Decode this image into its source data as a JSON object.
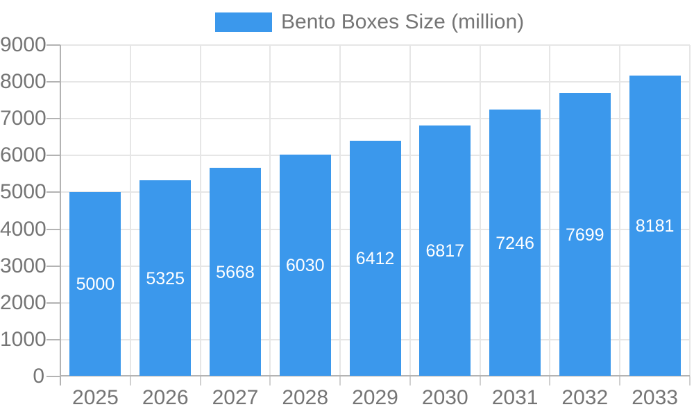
{
  "chart_data": {
    "type": "bar",
    "title": "Bento Boxes Size (million)",
    "categories": [
      "2025",
      "2026",
      "2027",
      "2028",
      "2029",
      "2030",
      "2031",
      "2032",
      "2033"
    ],
    "values": [
      5000,
      5325,
      5668,
      6030,
      6412,
      6817,
      7246,
      7699,
      8181
    ],
    "series": [
      {
        "name": "Bento Boxes Size (million)",
        "values": [
          5000,
          5325,
          5668,
          6030,
          6412,
          6817,
          7246,
          7699,
          8181
        ]
      }
    ],
    "xlabel": "",
    "ylabel": "",
    "ylim": [
      0,
      9000
    ],
    "ytick_step": 1000,
    "yticks": [
      0,
      1000,
      2000,
      3000,
      4000,
      5000,
      6000,
      7000,
      8000,
      9000
    ],
    "grid": true,
    "legend_position": "top",
    "bar_label_position": "inside-center"
  },
  "legend": {
    "label": "Bento Boxes Size (million)"
  },
  "colors": {
    "bar": "#3b98ec",
    "bar_label": "#ffffff",
    "axis_text": "#757575",
    "grid_line": "#e6e6e6",
    "axis_line": "#b3b3b3",
    "x_tick": "#d0d0d0",
    "background": "#ffffff"
  }
}
